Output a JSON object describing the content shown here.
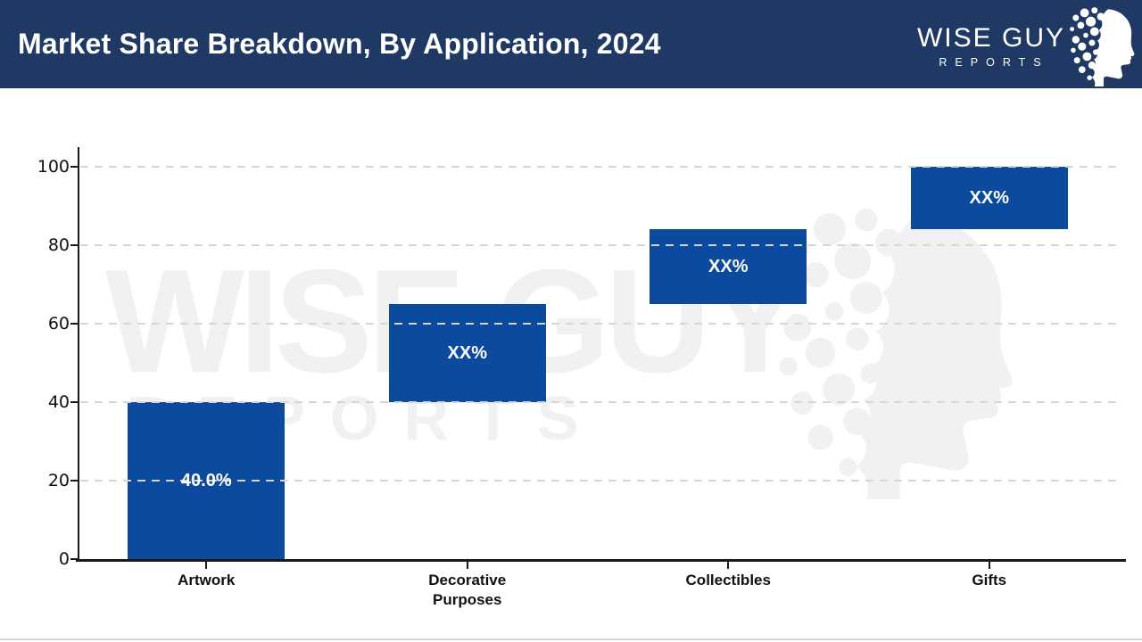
{
  "header": {
    "title": "Market Share Breakdown, By Application, 2024",
    "logo": {
      "wordmark": "WISE GUY",
      "subtitle": "REPORTS"
    }
  },
  "watermark": {
    "wordmark": "WISE GUY",
    "subtitle": "REPORTS"
  },
  "colors": {
    "header_bg": "#1f3864",
    "bar": "#0c4a9e",
    "bar_label": "#ffffff",
    "grid": "#d6d6d6",
    "axis": "#1a1a1a",
    "tick_label": "#111111",
    "watermark": "#f1f1f3"
  },
  "chart_data": {
    "type": "bar",
    "variant": "waterfall",
    "title": "Market Share Breakdown, By Application, 2024",
    "categories": [
      "Artwork",
      "Decorative\nPurposes",
      "Collectibles",
      "Gifts"
    ],
    "segments": [
      {
        "category": "Artwork",
        "start": 0,
        "end": 40,
        "label": "40.0%"
      },
      {
        "category": "Decorative\nPurposes",
        "start": 40,
        "end": 65,
        "label": "XX%"
      },
      {
        "category": "Collectibles",
        "start": 65,
        "end": 84,
        "label": "XX%"
      },
      {
        "category": "Gifts",
        "start": 84,
        "end": 100,
        "label": "XX%"
      }
    ],
    "xlabel": "",
    "ylabel": "",
    "ylim": [
      0,
      100
    ],
    "yticks": [
      0,
      20,
      40,
      60,
      80,
      100
    ],
    "grid": "horizontal-dashed",
    "legend": "none",
    "bar_width_fraction": 0.6
  }
}
